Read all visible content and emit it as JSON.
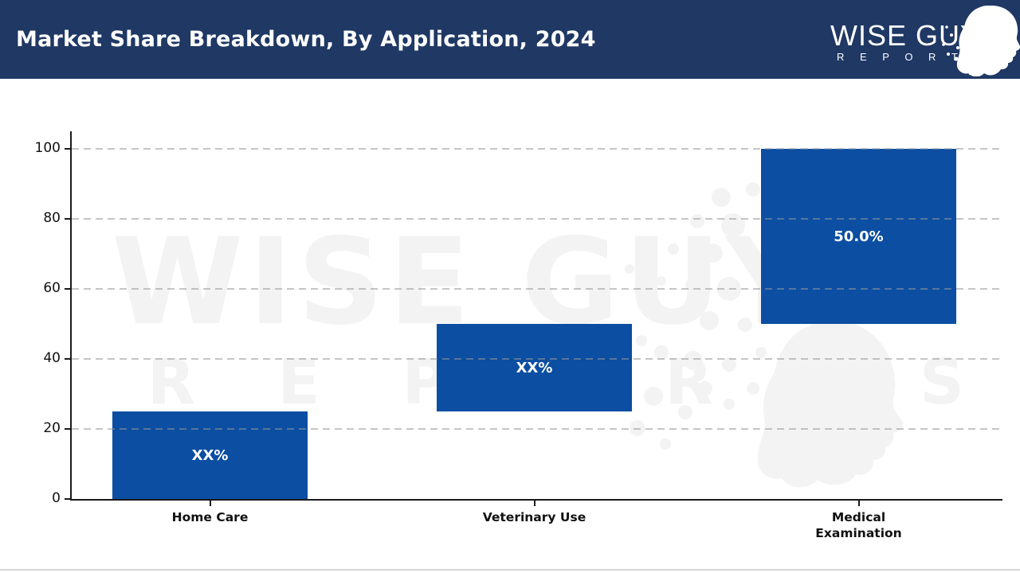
{
  "header": {
    "title": "Market Share Breakdown, By Application, 2024",
    "logo": {
      "line1": "WISE GUY",
      "line2": "R E P O R T S"
    }
  },
  "watermark": {
    "line1": "WISE GUY",
    "line2": "R E P O R T S"
  },
  "chart_data": {
    "type": "bar",
    "subtype": "floating-segment-bars",
    "title": "Market Share Breakdown, By Application, 2024",
    "categories": [
      "Home Care",
      "Veterinary Use",
      "Medical Examination"
    ],
    "series": [
      {
        "name": "Market Share",
        "segments": [
          {
            "category": "Home Care",
            "from": 0,
            "to": 25,
            "label": "XX%"
          },
          {
            "category": "Veterinary Use",
            "from": 25,
            "to": 50,
            "label": "XX%"
          },
          {
            "category": "Medical Examination",
            "from": 50,
            "to": 100,
            "label": "50.0%"
          }
        ]
      }
    ],
    "xlabel": "",
    "ylabel": "",
    "ylim": [
      0,
      100
    ],
    "yticks": [
      0,
      20,
      40,
      60,
      80,
      100
    ],
    "grid": {
      "axis": "y",
      "style": "dashed",
      "drawn_over_bars": true
    },
    "legend": null,
    "colors": {
      "bar": "#0B4EA2",
      "bar_label": "#FFFFFF",
      "header_bg": "#1F3864",
      "watermark": "#F3F3F3",
      "grid": "#BBBBBB",
      "axis": "#1A1A1A",
      "text": "#111111"
    }
  }
}
